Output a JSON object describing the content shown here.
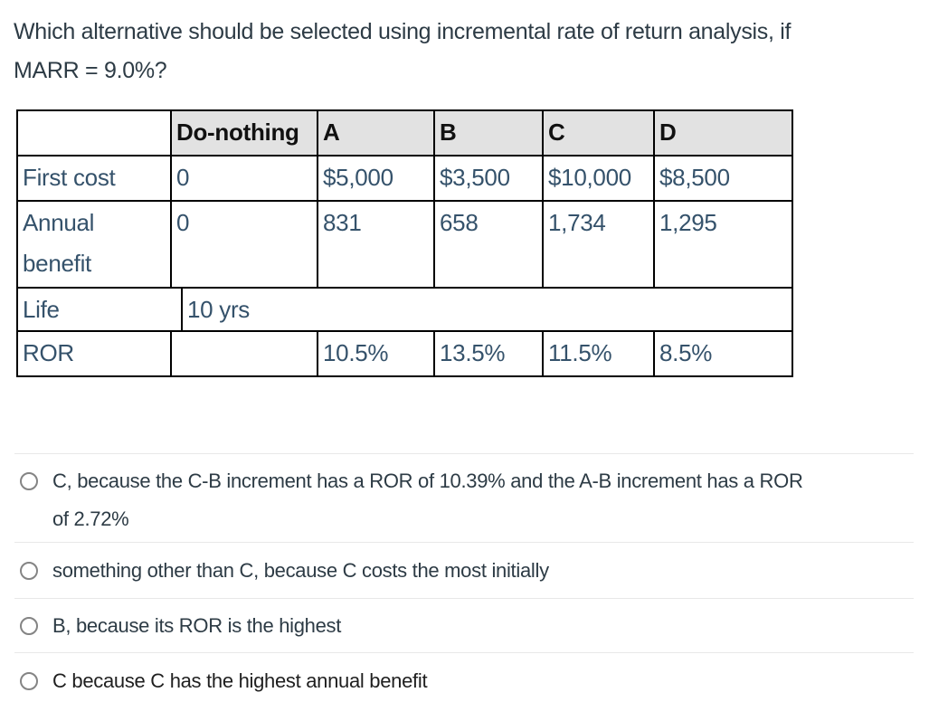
{
  "question": {
    "line1": "Which alternative should be selected using incremental rate of return analysis, if",
    "line2": "MARR = 9.0%?"
  },
  "table": {
    "header": [
      "",
      "Do-nothing",
      "A",
      "B",
      "C",
      "D"
    ],
    "rows": {
      "first_cost": {
        "label": "First cost",
        "values": [
          "0",
          "$5,000",
          "$3,500",
          "$10,000",
          "$8,500"
        ]
      },
      "annual_benefit": {
        "label": "Annual benefit",
        "values": [
          "0",
          "831",
          "658",
          "1,734",
          "1,295"
        ]
      },
      "life": {
        "label": "Life",
        "merged_value": "10 yrs"
      },
      "ror": {
        "label": "ROR",
        "values": [
          "",
          "10.5%",
          "13.5%",
          "11.5%",
          "8.5%"
        ]
      }
    }
  },
  "options": [
    {
      "selected": false,
      "lines": [
        "C, because the C-B increment has a ROR of 10.39% and the A-B increment has a ROR",
        "of 2.72%"
      ]
    },
    {
      "selected": false,
      "lines": [
        "something other than C, because C costs the most initially"
      ]
    },
    {
      "selected": false,
      "lines": [
        "B, because its ROR is the highest"
      ]
    },
    {
      "selected": false,
      "lines": [
        "C because C has the highest annual benefit"
      ]
    }
  ],
  "colors": {
    "header_background": "#e2e2e2",
    "table_border": "#000000",
    "table_text": "#35526b",
    "body_text": "#2d3b45",
    "option4_text": "#1f1f1f",
    "radio_border": "#848484",
    "divider": "#e8e8e8"
  }
}
